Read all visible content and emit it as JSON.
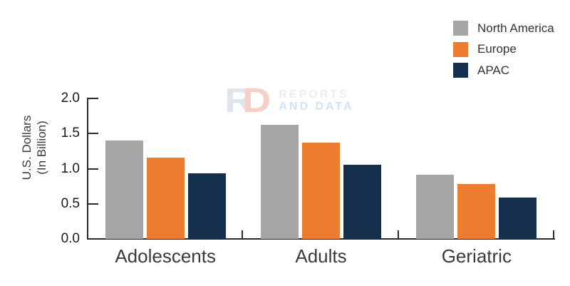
{
  "chart_data": {
    "type": "bar",
    "title": "",
    "categories": [
      "Adolescents",
      "Adults",
      "Geriatric"
    ],
    "series": [
      {
        "name": "North America",
        "color": "#a6a6a6",
        "values": [
          1.4,
          1.62,
          0.91
        ]
      },
      {
        "name": "Europe",
        "color": "#ec7d2f",
        "values": [
          1.16,
          1.37,
          0.78
        ]
      },
      {
        "name": "APAC",
        "color": "#14304c",
        "values": [
          0.93,
          1.06,
          0.59
        ]
      }
    ],
    "xlabel": "",
    "ylabel": "U.S. Dollars (In Billion)",
    "ylabel_line1": "U.S. Dollars",
    "ylabel_line2": "(In Billion)",
    "ylim": [
      0.0,
      2.0
    ],
    "yticks": [
      {
        "value": 0.0,
        "label": "0.0"
      },
      {
        "value": 0.5,
        "label": "0.5"
      },
      {
        "value": 1.0,
        "label": "1.0"
      },
      {
        "value": 1.5,
        "label": "1.5"
      },
      {
        "value": 2.0,
        "label": "2.0"
      }
    ],
    "grid": false,
    "legend_position": "top-right"
  },
  "watermark": {
    "logo_r": "R",
    "logo_d": "D",
    "line1": "REPORTS",
    "line2": "AND DATA"
  }
}
